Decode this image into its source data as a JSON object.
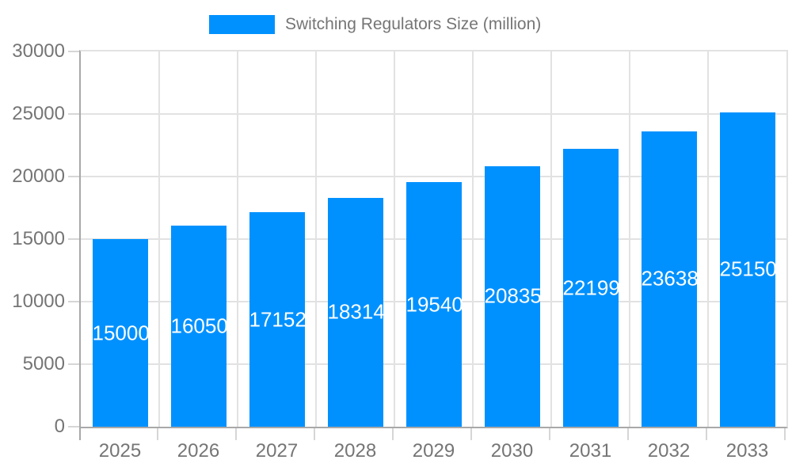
{
  "legend": {
    "label": "Switching Regulators Size (million)"
  },
  "chart_data": {
    "type": "bar",
    "title": "Switching Regulators Size (million)",
    "categories": [
      "2025",
      "2026",
      "2027",
      "2028",
      "2029",
      "2030",
      "2031",
      "2032",
      "2033"
    ],
    "values": [
      15000,
      16050,
      17152,
      18314,
      19540,
      20835,
      22199,
      23638,
      25150
    ],
    "xlabel": "",
    "ylabel": "",
    "ylim": [
      0,
      30000
    ],
    "yticks": [
      0,
      5000,
      10000,
      15000,
      20000,
      25000,
      30000
    ],
    "grid": true,
    "legend_position": "top-center",
    "bar_label_position": "center-inside"
  },
  "colors": {
    "bar": "#0091ff",
    "bar_label": "#ffffff",
    "grid": "#e2e2e2",
    "axis": "#a8a8a8",
    "tick_mark": "#d6d6d6",
    "tick_label": "#757575",
    "background": "#ffffff"
  }
}
